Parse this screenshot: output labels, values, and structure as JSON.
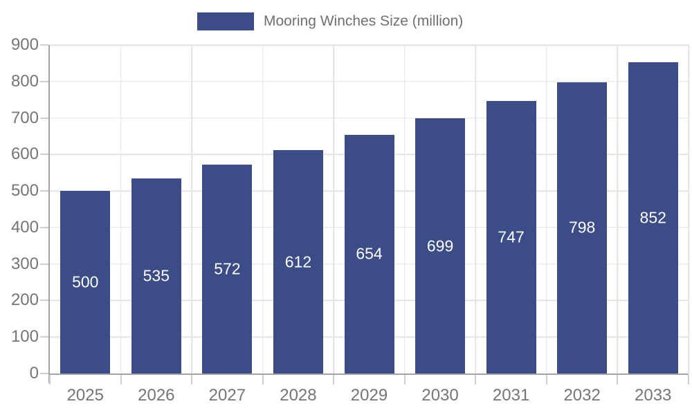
{
  "legend": {
    "label": "Mooring Winches Size (million)",
    "swatch_color": "#3B4C86"
  },
  "chart_data": {
    "type": "bar",
    "title": "Mooring Winches Size (million)",
    "xlabel": "",
    "ylabel": "",
    "categories": [
      "2025",
      "2026",
      "2027",
      "2028",
      "2029",
      "2030",
      "2031",
      "2032",
      "2033"
    ],
    "series": [
      {
        "name": "Mooring Winches Size (million)",
        "values": [
          500,
          535,
          572,
          612,
          654,
          699,
          747,
          798,
          852
        ]
      }
    ],
    "value_labels": [
      "500",
      "535",
      "572",
      "612",
      "654",
      "699",
      "747",
      "798",
      "852"
    ],
    "ylim": [
      0,
      900
    ],
    "ytick_step": 100,
    "ytick_labels": [
      "0",
      "100",
      "200",
      "300",
      "400",
      "500",
      "600",
      "700",
      "800",
      "900"
    ],
    "grid": true,
    "legend_position": "top-center",
    "style": {
      "bar_color": "#3B4C86",
      "value_label_color": "#ffffff",
      "grid_color": "#e3e3e3",
      "spine_color": "#a3a3a3",
      "tick_color": "#cfcfcf",
      "axis_text_color": "#757575",
      "legend_text_color": "#6d7175",
      "background": "#ffffff"
    }
  }
}
